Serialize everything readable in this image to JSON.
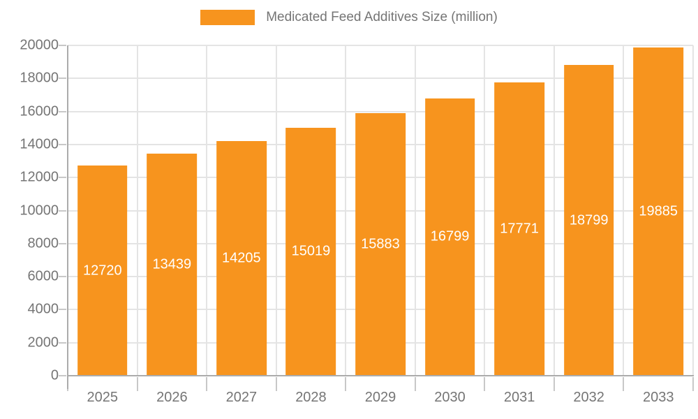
{
  "colors": {
    "bar": "#f7941e",
    "axis": "#ababab",
    "tick": "#c8c8c8",
    "grid": "#e4e4e4",
    "text": "#757575",
    "bar_label": "#ffffff",
    "background": "#ffffff"
  },
  "legend": {
    "label": "Medicated Feed Additives Size (million)",
    "swatch_color": "#f7941e",
    "position": "top-center"
  },
  "chart_data": {
    "type": "bar",
    "title": "Medicated Feed Additives Size (million)",
    "categories": [
      "2025",
      "2026",
      "2027",
      "2028",
      "2029",
      "2030",
      "2031",
      "2032",
      "2033"
    ],
    "values": [
      12720,
      13439,
      14205,
      15019,
      15883,
      16799,
      17771,
      18799,
      19885
    ],
    "xlabel": "",
    "ylabel": "",
    "ylim": [
      0,
      20000
    ],
    "ytick_step": 2000,
    "ytick_labels": [
      "0",
      "2000",
      "4000",
      "6000",
      "8000",
      "10000",
      "12000",
      "14000",
      "16000",
      "18000",
      "20000"
    ],
    "grid": true,
    "bar_label_position": "inside-middle",
    "legend_position": "top"
  }
}
